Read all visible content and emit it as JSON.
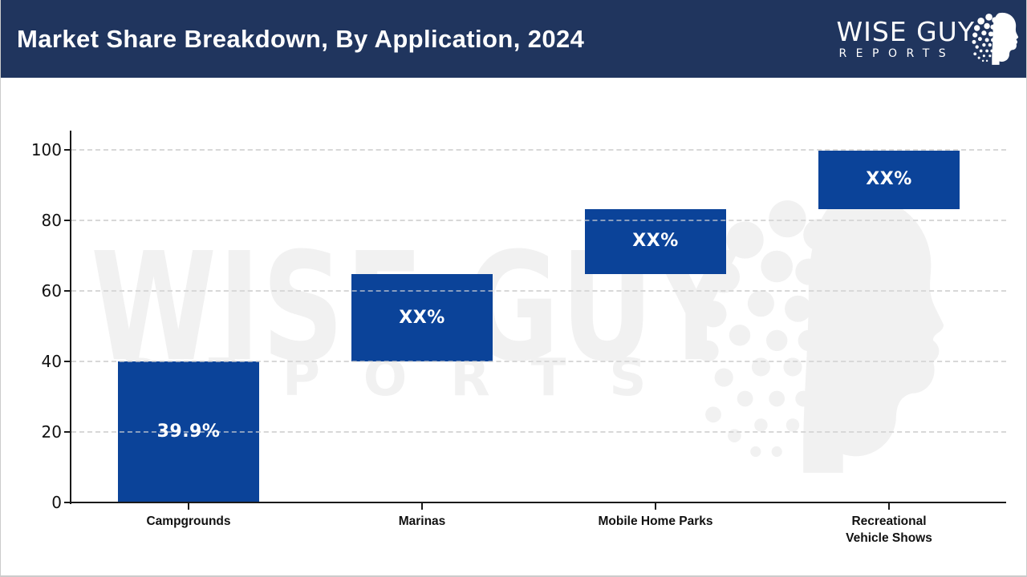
{
  "header": {
    "title": "Market Share Breakdown, By Application, 2024",
    "bg_color": "#20355e",
    "logo": {
      "line1": "WISE GUY",
      "line2": "REPORTS"
    }
  },
  "watermark": {
    "line1": "WISE GUY",
    "line2": "REPORTS"
  },
  "chart_data": {
    "type": "bar",
    "subtype": "waterfall",
    "title": "Market Share Breakdown, By Application, 2024",
    "categories": [
      "Campgrounds",
      "Marinas",
      "Mobile Home Parks",
      "Recreational\nVehicle Shows"
    ],
    "series": [
      {
        "name": "Market Share",
        "segments": [
          {
            "category": "Campgrounds",
            "start": 0,
            "end": 39.9,
            "label": "39.9%"
          },
          {
            "category": "Marinas",
            "start": 39.9,
            "end": 64.8,
            "label": "XX%"
          },
          {
            "category": "Mobile Home Parks",
            "start": 64.8,
            "end": 83.2,
            "label": "XX%"
          },
          {
            "category": "Recreational Vehicle Shows",
            "start": 83.2,
            "end": 99.8,
            "label": "XX%"
          }
        ]
      }
    ],
    "yticks": [
      0,
      20,
      40,
      60,
      80,
      100
    ],
    "ylim": [
      0,
      105
    ],
    "xlabel": "",
    "ylabel": "",
    "grid": true,
    "legend": false,
    "bar_color": "#0b4399",
    "bar_label_color": "#ffffff",
    "gridline_color": "#dadada",
    "axis_color": "#1a1a1a"
  }
}
